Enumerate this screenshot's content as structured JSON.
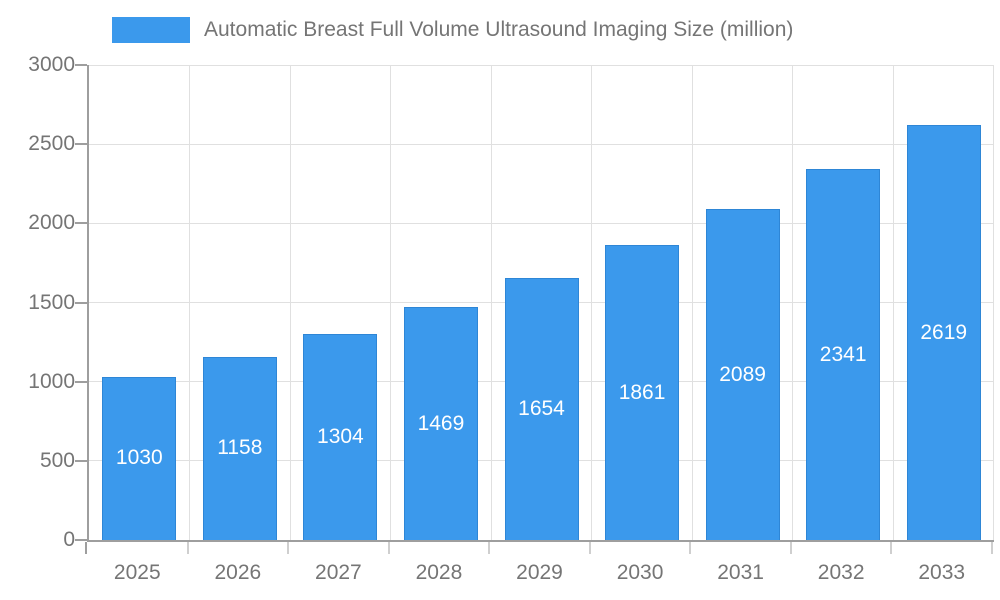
{
  "chart_data": {
    "type": "bar",
    "title": "Automatic Breast Full Volume Ultrasound Imaging Size (million)",
    "legend": "Automatic Breast Full Volume Ultrasound Imaging Size (million)",
    "legend_position": "top",
    "categories": [
      "2025",
      "2026",
      "2027",
      "2028",
      "2029",
      "2030",
      "2031",
      "2032",
      "2033"
    ],
    "values": [
      1030,
      1158,
      1304,
      1469,
      1654,
      1861,
      2089,
      2341,
      2619
    ],
    "xlabel": "",
    "ylabel": "",
    "ylim": [
      0,
      3000
    ],
    "yticks": [
      0,
      500,
      1000,
      1500,
      2000,
      2500,
      3000
    ],
    "grid": "on",
    "colors": {
      "bar_fill": "#3b99ec",
      "bar_border": "#2e86d6",
      "value_label": "#ffffff",
      "axis_line": "#9e9e9e",
      "gridline": "#e0e0e0",
      "tick_minor": "#cfcfcf",
      "text": "#757575",
      "background": "#ffffff"
    }
  }
}
